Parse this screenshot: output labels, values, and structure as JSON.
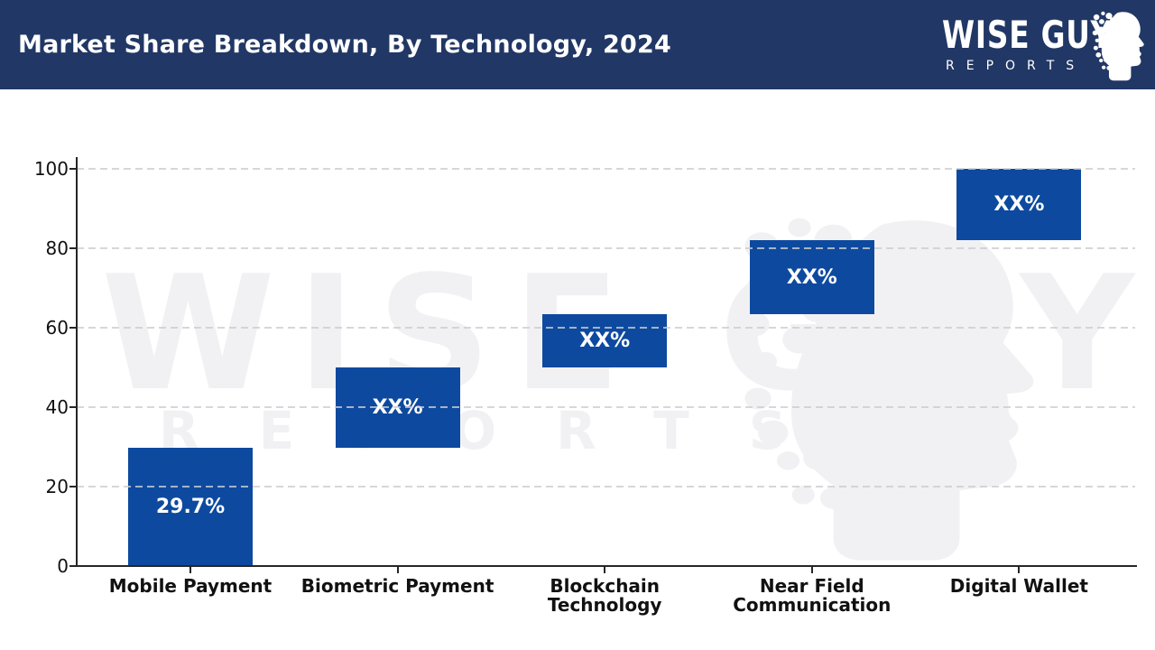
{
  "header": {
    "title": "Market Share Breakdown, By Technology, 2024",
    "bg_color": "#213765",
    "logo": {
      "line1": "WISE GUY",
      "line2": "REPORTS"
    }
  },
  "watermark": {
    "line1": "WISE GUY",
    "line2": "REPORTS"
  },
  "chart_data": {
    "type": "bar",
    "subtype": "floating-waterfall",
    "title": "Market Share Breakdown, By Technology, 2024",
    "unit": "percent market share",
    "categories": [
      [
        "Mobile Payment"
      ],
      [
        "Biometric Payment"
      ],
      [
        "Blockchain",
        "Technology"
      ],
      [
        "Near Field",
        "Communication"
      ],
      [
        "Digital Wallet"
      ]
    ],
    "bars": [
      {
        "category": "Mobile Payment",
        "from": 0,
        "to": 29.7,
        "label": "29.7%"
      },
      {
        "category": "Biometric Payment",
        "from": 29.7,
        "to": 49.9,
        "label": "XX%"
      },
      {
        "category": "Blockchain Technology",
        "from": 49.9,
        "to": 63.4,
        "label": "XX%"
      },
      {
        "category": "Near Field Communication",
        "from": 63.4,
        "to": 82.0,
        "label": "XX%"
      },
      {
        "category": "Digital Wallet",
        "from": 82.0,
        "to": 100,
        "label": "XX%"
      }
    ],
    "yticks": [
      0,
      20,
      40,
      60,
      80,
      100
    ],
    "ylim": [
      0,
      103
    ],
    "grid": "horizontal dashed",
    "legend": false,
    "bar_color": "#0d4a9f",
    "bar_label_color": "#ffffff",
    "axis_color": "#262626",
    "grid_color": "#cdcdd0"
  }
}
